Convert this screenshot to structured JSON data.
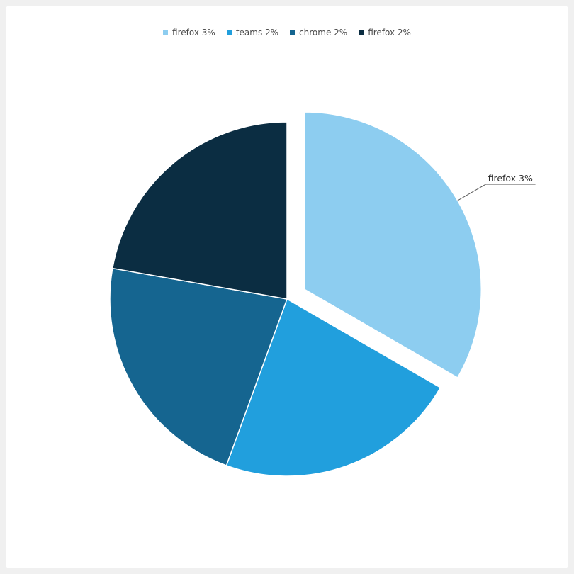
{
  "page": {
    "background": "#F0F0F0",
    "card_background": "#FFFFFF",
    "legend_text_color": "#4A4A4A",
    "callout_text_color": "#2B2B2B",
    "leader_line_color": "#4D4D4D",
    "slice_stroke_color": "#FFFFFF"
  },
  "chart_data": {
    "type": "pie",
    "title": "",
    "total": 9,
    "start_angle_deg": -90,
    "direction": "clockwise",
    "legend_position": "top",
    "slices": [
      {
        "name": "firefox",
        "value": 3,
        "label": "firefox 3%",
        "color": "#8DCDF0",
        "exploded": true,
        "callout": true
      },
      {
        "name": "teams",
        "value": 2,
        "label": "teams 2%",
        "color": "#219FDD",
        "exploded": false,
        "callout": false
      },
      {
        "name": "chrome",
        "value": 2,
        "label": "chrome 2%",
        "color": "#156590",
        "exploded": false,
        "callout": false
      },
      {
        "name": "firefox2",
        "value": 2,
        "label": "firefox 2%",
        "color": "#0B2D42",
        "exploded": false,
        "callout": false
      }
    ],
    "callout_label": "firefox 3%"
  }
}
